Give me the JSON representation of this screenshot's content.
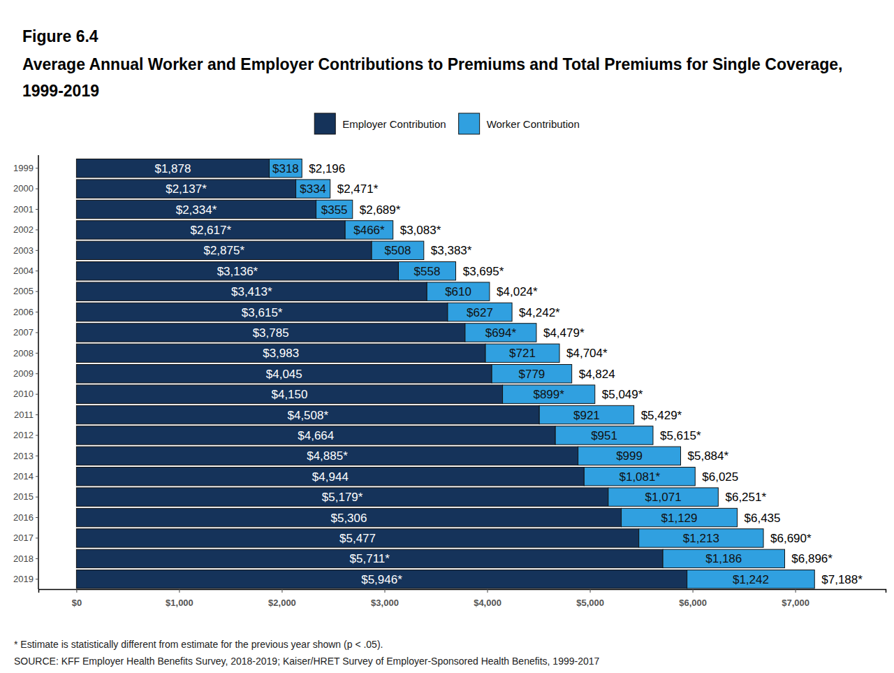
{
  "chart_data": {
    "type": "bar",
    "orientation": "horizontal",
    "stacked": true,
    "data_labels": true,
    "legend": "top",
    "grid": false,
    "title": "Figure 6.4",
    "subtitle": "Average Annual Worker and Employer Contributions to Premiums and Total Premiums for Single Coverage, 1999-2019",
    "categories": [
      "1999",
      "2000",
      "2001",
      "2002",
      "2003",
      "2004",
      "2005",
      "2006",
      "2007",
      "2008",
      "2009",
      "2010",
      "2011",
      "2012",
      "2013",
      "2014",
      "2015",
      "2016",
      "2017",
      "2018",
      "2019"
    ],
    "series": [
      {
        "name": "Employer Contribution",
        "color": "#15335a",
        "values": [
          1878,
          2137,
          2334,
          2617,
          2875,
          3136,
          3413,
          3615,
          3785,
          3983,
          4045,
          4150,
          4508,
          4664,
          4885,
          4944,
          5179,
          5306,
          5477,
          5711,
          5946
        ],
        "value_labels": [
          "$1,878",
          "$2,137*",
          "$2,334*",
          "$2,617*",
          "$2,875*",
          "$3,136*",
          "$3,413*",
          "$3,615*",
          "$3,785",
          "$3,983",
          "$4,045",
          "$4,150",
          "$4,508*",
          "$4,664",
          "$4,885*",
          "$4,944",
          "$5,179*",
          "$5,306",
          "$5,477",
          "$5,711*",
          "$5,946*"
        ]
      },
      {
        "name": "Worker Contribution",
        "color": "#30a0e0",
        "values": [
          318,
          334,
          355,
          466,
          508,
          558,
          610,
          627,
          694,
          721,
          779,
          899,
          921,
          951,
          999,
          1081,
          1071,
          1129,
          1213,
          1186,
          1242
        ],
        "value_labels": [
          "$318",
          "$334",
          "$355",
          "$466*",
          "$508",
          "$558",
          "$610",
          "$627",
          "$694*",
          "$721",
          "$779",
          "$899*",
          "$921",
          "$951",
          "$999",
          "$1,081*",
          "$1,071",
          "$1,129",
          "$1,213",
          "$1,186",
          "$1,242"
        ]
      }
    ],
    "totals": [
      2196,
      2471,
      2689,
      3083,
      3383,
      3695,
      4024,
      4242,
      4479,
      4704,
      4824,
      5049,
      5429,
      5615,
      5884,
      6025,
      6251,
      6435,
      6690,
      6896,
      7188
    ],
    "total_labels": [
      "$2,196",
      "$2,471*",
      "$2,689*",
      "$3,083*",
      "$3,383*",
      "$3,695*",
      "$4,024*",
      "$4,242*",
      "$4,479*",
      "$4,704*",
      "$4,824",
      "$5,049*",
      "$5,429*",
      "$5,615*",
      "$5,884*",
      "$6,025",
      "$6,251*",
      "$6,435",
      "$6,690*",
      "$6,896*",
      "$7,188*"
    ],
    "xlim": [
      -370,
      7880
    ],
    "xticks": [
      {
        "value": 0,
        "label": "$0"
      },
      {
        "value": 1000,
        "label": "$1,000"
      },
      {
        "value": 2000,
        "label": "$2,000"
      },
      {
        "value": 3000,
        "label": "$3,000"
      },
      {
        "value": 4000,
        "label": "$4,000"
      },
      {
        "value": 5000,
        "label": "$5,000"
      },
      {
        "value": 6000,
        "label": "$6,000"
      },
      {
        "value": 7000,
        "label": "$7,000"
      }
    ],
    "annotations": [
      "* Estimate is statistically different from estimate for the previous year shown (p < .05).",
      "SOURCE: KFF Employer Health Benefits Survey, 2018-2019; Kaiser/HRET Survey of Employer-Sponsored Health Benefits, 1999-2017"
    ]
  }
}
